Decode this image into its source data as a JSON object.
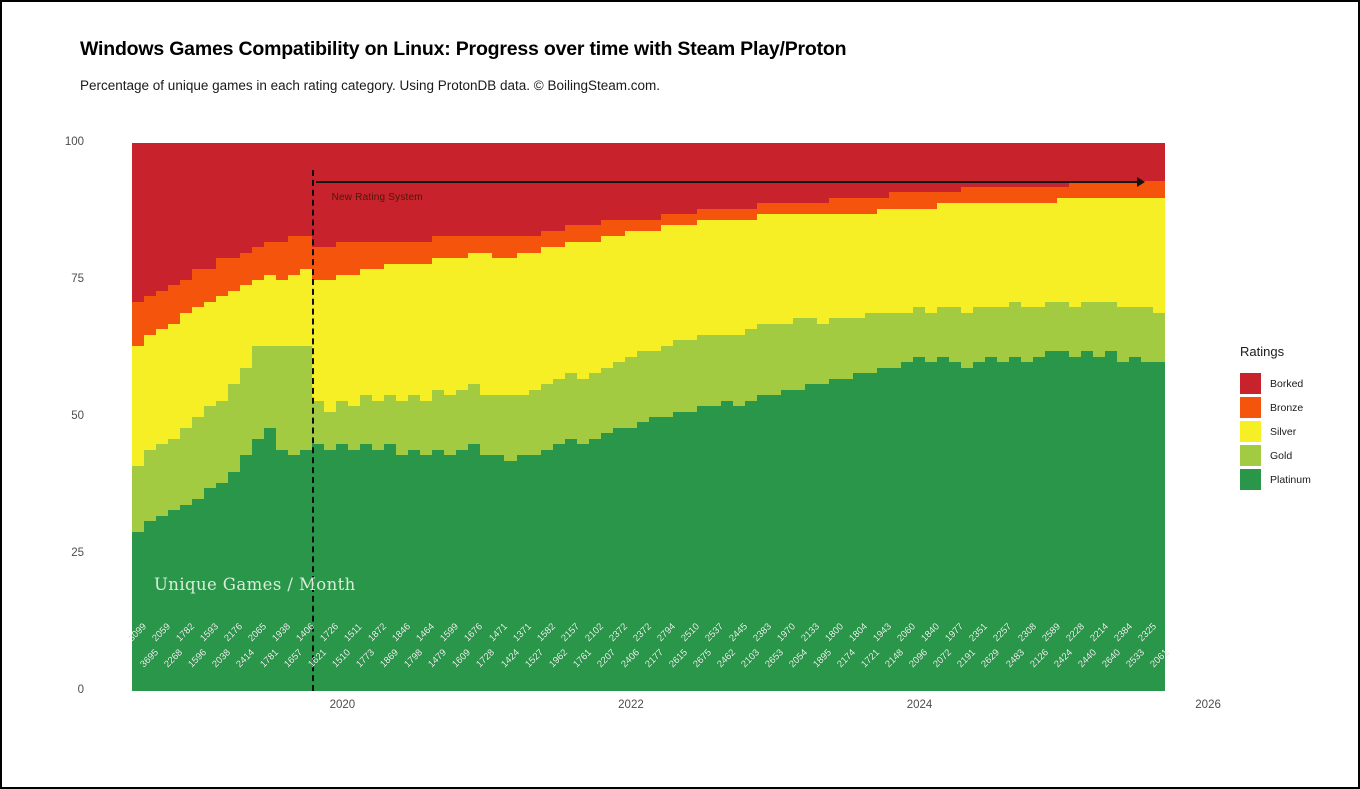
{
  "header": {
    "title": "Windows Games Compatibility on Linux: Progress over time with Steam Play/Proton",
    "subtitle": "Percentage of unique games in each rating category. Using ProtonDB data. © BoilingSteam.com."
  },
  "chart_data": {
    "type": "bar",
    "stacked": true,
    "title": "Windows Games Compatibility on Linux: Progress over time with Steam Play/Proton",
    "subtitle": "Percentage of unique games in each rating category. Using ProtonDB data. © BoilingSteam.com.",
    "ylim": [
      0,
      100
    ],
    "y_ticks": [
      0,
      25,
      50,
      75,
      100
    ],
    "x_ticks": [
      {
        "label": "2020",
        "month_index": 18
      },
      {
        "label": "2022",
        "month_index": 42
      },
      {
        "label": "2024",
        "month_index": 66
      },
      {
        "label": "2026",
        "month_index": 90
      }
    ],
    "bar_count": 86,
    "bar_labels": [
      "3099",
      "3695",
      "2059",
      "2268",
      "1782",
      "1596",
      "1593",
      "2038",
      "2176",
      "2414",
      "2065",
      "1781",
      "1938",
      "1657",
      "1406",
      "1621",
      "1726",
      "1510",
      "1511",
      "1773",
      "1872",
      "1869",
      "1846",
      "1798",
      "1464",
      "1479",
      "1599",
      "1609",
      "1676",
      "1728",
      "1471",
      "1424",
      "1371",
      "1527",
      "1582",
      "1962",
      "2157",
      "1761",
      "2102",
      "2207",
      "2372",
      "2406",
      "2372",
      "2177",
      "2794",
      "2615",
      "2510",
      "2675",
      "2537",
      "2462",
      "2445",
      "2103",
      "2383",
      "2653",
      "1970",
      "2054",
      "2133",
      "1895",
      "1800",
      "2174",
      "1804",
      "1721",
      "1943",
      "2148",
      "2060",
      "2096",
      "1840",
      "2072",
      "1977",
      "2191",
      "2351",
      "2629",
      "2257",
      "2483",
      "2308",
      "2126",
      "2589",
      "2424",
      "2228",
      "2440",
      "2214",
      "2640",
      "2384",
      "2533",
      "2325",
      "2061"
    ],
    "series": [
      {
        "name": "Platinum",
        "color": "#2a9649",
        "values": [
          29,
          31,
          32,
          33,
          34,
          35,
          37,
          38,
          40,
          43,
          46,
          48,
          44,
          43,
          44,
          45,
          44,
          45,
          44,
          45,
          44,
          45,
          43,
          44,
          43,
          44,
          43,
          44,
          45,
          43,
          43,
          42,
          43,
          43,
          44,
          45,
          46,
          45,
          46,
          47,
          48,
          48,
          49,
          50,
          50,
          51,
          51,
          52,
          52,
          53,
          52,
          53,
          54,
          54,
          55,
          55,
          56,
          56,
          57,
          57,
          58,
          58,
          59,
          59,
          60,
          61,
          60,
          61,
          60,
          59,
          60,
          61,
          60,
          61,
          60,
          61,
          62,
          62,
          61,
          62,
          61,
          62,
          60,
          61,
          60,
          60
        ]
      },
      {
        "name": "Gold",
        "color": "#a3cb42",
        "values": [
          12,
          13,
          13,
          13,
          14,
          15,
          15,
          15,
          16,
          16,
          17,
          15,
          19,
          20,
          19,
          8,
          7,
          8,
          8,
          9,
          9,
          9,
          10,
          10,
          10,
          11,
          11,
          11,
          11,
          11,
          11,
          12,
          11,
          12,
          12,
          12,
          12,
          12,
          12,
          12,
          12,
          13,
          13,
          12,
          13,
          13,
          13,
          13,
          13,
          12,
          13,
          13,
          13,
          13,
          12,
          13,
          12,
          11,
          11,
          11,
          10,
          11,
          10,
          10,
          9,
          9,
          9,
          9,
          10,
          10,
          10,
          9,
          10,
          10,
          10,
          9,
          9,
          9,
          9,
          9,
          10,
          9,
          10,
          9,
          10,
          9
        ]
      },
      {
        "name": "Silver",
        "color": "#f7ef25",
        "values": [
          22,
          21,
          21,
          21,
          21,
          20,
          19,
          19,
          17,
          15,
          12,
          13,
          12,
          13,
          14,
          22,
          24,
          23,
          24,
          23,
          24,
          24,
          25,
          24,
          25,
          24,
          25,
          24,
          24,
          26,
          25,
          25,
          26,
          25,
          25,
          24,
          24,
          25,
          24,
          24,
          23,
          23,
          22,
          22,
          22,
          21,
          21,
          21,
          21,
          21,
          21,
          20,
          20,
          20,
          20,
          19,
          19,
          20,
          19,
          19,
          19,
          18,
          19,
          19,
          19,
          18,
          19,
          19,
          19,
          20,
          19,
          19,
          19,
          18,
          19,
          19,
          18,
          19,
          20,
          19,
          19,
          19,
          20,
          20,
          20,
          21
        ]
      },
      {
        "name": "Bronze",
        "color": "#f4540b",
        "values": [
          8,
          7,
          7,
          7,
          6,
          7,
          6,
          7,
          6,
          6,
          6,
          6,
          7,
          7,
          6,
          6,
          6,
          6,
          6,
          5,
          5,
          4,
          4,
          4,
          4,
          4,
          4,
          4,
          3,
          3,
          4,
          4,
          3,
          3,
          3,
          3,
          3,
          3,
          3,
          3,
          3,
          2,
          2,
          2,
          2,
          2,
          2,
          2,
          2,
          2,
          2,
          2,
          2,
          2,
          2,
          2,
          2,
          2,
          3,
          3,
          3,
          3,
          2,
          3,
          3,
          3,
          3,
          2,
          2,
          3,
          3,
          3,
          3,
          3,
          3,
          3,
          3,
          2,
          3,
          3,
          3,
          3,
          3,
          3,
          3,
          3
        ]
      },
      {
        "name": "Borked",
        "color": "#c8232c",
        "values": [
          29,
          28,
          27,
          26,
          25,
          23,
          23,
          21,
          21,
          20,
          19,
          18,
          18,
          17,
          17,
          19,
          19,
          18,
          18,
          18,
          18,
          18,
          18,
          18,
          18,
          17,
          17,
          17,
          17,
          17,
          17,
          17,
          17,
          17,
          16,
          16,
          15,
          15,
          15,
          14,
          14,
          14,
          14,
          14,
          13,
          13,
          13,
          12,
          12,
          12,
          12,
          12,
          11,
          11,
          11,
          11,
          11,
          11,
          10,
          10,
          10,
          10,
          10,
          9,
          9,
          9,
          9,
          9,
          9,
          8,
          8,
          8,
          8,
          8,
          8,
          8,
          8,
          8,
          7,
          7,
          7,
          7,
          7,
          7,
          7,
          7
        ]
      }
    ],
    "annotations": {
      "arrow_label": "New Rating System",
      "dashed_line_month_index": 15,
      "arrow_start_month": 15.3,
      "arrow_end_month": 83.7,
      "inner_label": "Unique Games / Month"
    },
    "legend": {
      "title": "Ratings",
      "position": "right",
      "items": [
        {
          "label": "Borked",
          "color": "#c8232c"
        },
        {
          "label": "Bronze",
          "color": "#f4540b"
        },
        {
          "label": "Silver",
          "color": "#f7ef25"
        },
        {
          "label": "Gold",
          "color": "#a3cb42"
        },
        {
          "label": "Platinum",
          "color": "#2a9649"
        }
      ]
    }
  }
}
